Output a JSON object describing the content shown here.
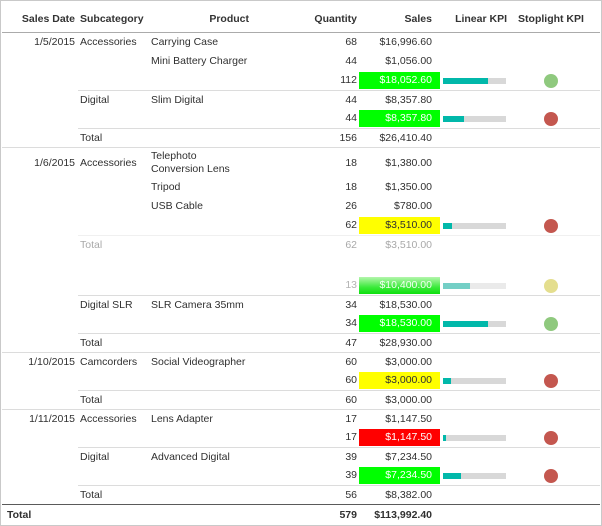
{
  "chart_data": {
    "type": "table",
    "columns": [
      {
        "key": "date",
        "label": "Sales Date"
      },
      {
        "key": "subcategory",
        "label": "Subcategory"
      },
      {
        "key": "product",
        "label": "Product"
      },
      {
        "key": "quantity",
        "label": "Quantity"
      },
      {
        "key": "sales",
        "label": "Sales"
      },
      {
        "key": "kpi",
        "label": "Linear KPI"
      },
      {
        "key": "dot",
        "label": "Stoplight KPI"
      }
    ],
    "rows": [
      {
        "row_type": "detail",
        "separator": "none",
        "date": "1/5/2015",
        "subcategory": "Accessories",
        "product": "Carrying Case",
        "quantity": "68",
        "sales": "$16,996.60",
        "highlight": null,
        "kpi_fraction": null,
        "dot": null,
        "faded": false
      },
      {
        "row_type": "detail",
        "separator": "none",
        "date": "",
        "subcategory": "",
        "product": "Mini Battery Charger",
        "quantity": "44",
        "sales": "$1,056.00",
        "highlight": null,
        "kpi_fraction": null,
        "dot": null,
        "faded": false
      },
      {
        "row_type": "subtotal",
        "separator": "none",
        "date": "",
        "subcategory": "",
        "product": "",
        "quantity": "112",
        "sales": "$18,052.60",
        "highlight": "green",
        "kpi_fraction": 0.72,
        "dot": "green",
        "faded": false
      },
      {
        "row_type": "detail",
        "separator": "sub",
        "date": "",
        "subcategory": "Digital",
        "product": "Slim Digital",
        "quantity": "44",
        "sales": "$8,357.80",
        "highlight": null,
        "kpi_fraction": null,
        "dot": null,
        "faded": false
      },
      {
        "row_type": "subtotal",
        "separator": "none",
        "date": "",
        "subcategory": "",
        "product": "",
        "quantity": "44",
        "sales": "$8,357.80",
        "highlight": "green",
        "kpi_fraction": 0.33,
        "dot": "red",
        "faded": false
      },
      {
        "row_type": "total",
        "separator": "sub",
        "date": "",
        "subcategory": "Total",
        "product": "",
        "quantity": "156",
        "sales": "$26,410.40",
        "highlight": null,
        "kpi_fraction": null,
        "dot": null,
        "faded": false
      },
      {
        "row_type": "detail",
        "separator": "group",
        "date": "1/6/2015",
        "subcategory": "Accessories",
        "product": "Telephoto Conversion Lens",
        "quantity": "18",
        "sales": "$1,380.00",
        "highlight": null,
        "kpi_fraction": null,
        "dot": null,
        "faded": false
      },
      {
        "row_type": "detail",
        "separator": "none",
        "date": "",
        "subcategory": "",
        "product": "Tripod",
        "quantity": "18",
        "sales": "$1,350.00",
        "highlight": null,
        "kpi_fraction": null,
        "dot": null,
        "faded": false
      },
      {
        "row_type": "detail",
        "separator": "none",
        "date": "",
        "subcategory": "",
        "product": "USB Cable",
        "quantity": "26",
        "sales": "$780.00",
        "highlight": null,
        "kpi_fraction": null,
        "dot": null,
        "faded": false
      },
      {
        "row_type": "subtotal",
        "separator": "none",
        "date": "",
        "subcategory": "",
        "product": "",
        "quantity": "62",
        "sales": "$3,510.00",
        "highlight": "yellow",
        "kpi_fraction": 0.14,
        "dot": "red",
        "faded": false
      },
      {
        "row_type": "total",
        "separator": "sub",
        "date": "",
        "subcategory": "Total",
        "product": "",
        "quantity": "62",
        "sales": "$3,510.00",
        "highlight": null,
        "kpi_fraction": null,
        "dot": null,
        "faded": true
      },
      {
        "row_type": "ghost",
        "separator": "none",
        "date": "",
        "subcategory": "",
        "product": "",
        "quantity": "",
        "sales": "",
        "highlight": null,
        "kpi_fraction": null,
        "dot": null,
        "faded": true
      },
      {
        "row_type": "subtotal",
        "separator": "none",
        "date": "",
        "subcategory": "",
        "product": "",
        "quantity": "13",
        "sales": "$10,400.00",
        "highlight": "greenfade",
        "kpi_fraction": 0.43,
        "dot": "yellow",
        "faded": false
      },
      {
        "row_type": "detail",
        "separator": "sub",
        "date": "",
        "subcategory": "Digital SLR",
        "product": "SLR Camera 35mm",
        "quantity": "34",
        "sales": "$18,530.00",
        "highlight": null,
        "kpi_fraction": null,
        "dot": null,
        "faded": false
      },
      {
        "row_type": "subtotal",
        "separator": "none",
        "date": "",
        "subcategory": "",
        "product": "",
        "quantity": "34",
        "sales": "$18,530.00",
        "highlight": "green",
        "kpi_fraction": 0.72,
        "dot": "green",
        "faded": false
      },
      {
        "row_type": "total",
        "separator": "sub",
        "date": "",
        "subcategory": "Total",
        "product": "",
        "quantity": "47",
        "sales": "$28,930.00",
        "highlight": null,
        "kpi_fraction": null,
        "dot": null,
        "faded": false
      },
      {
        "row_type": "detail",
        "separator": "group",
        "date": "1/10/2015",
        "subcategory": "Camcorders",
        "product": "Social Videographer",
        "quantity": "60",
        "sales": "$3,000.00",
        "highlight": null,
        "kpi_fraction": null,
        "dot": null,
        "faded": false
      },
      {
        "row_type": "subtotal",
        "separator": "none",
        "date": "",
        "subcategory": "",
        "product": "",
        "quantity": "60",
        "sales": "$3,000.00",
        "highlight": "yellow",
        "kpi_fraction": 0.12,
        "dot": "red",
        "faded": false
      },
      {
        "row_type": "total",
        "separator": "sub",
        "date": "",
        "subcategory": "Total",
        "product": "",
        "quantity": "60",
        "sales": "$3,000.00",
        "highlight": null,
        "kpi_fraction": null,
        "dot": null,
        "faded": false
      },
      {
        "row_type": "detail",
        "separator": "group",
        "date": "1/11/2015",
        "subcategory": "Accessories",
        "product": "Lens Adapter",
        "quantity": "17",
        "sales": "$1,147.50",
        "highlight": null,
        "kpi_fraction": null,
        "dot": null,
        "faded": false
      },
      {
        "row_type": "subtotal",
        "separator": "none",
        "date": "",
        "subcategory": "",
        "product": "",
        "quantity": "17",
        "sales": "$1,147.50",
        "highlight": "red",
        "kpi_fraction": 0.045,
        "dot": "red",
        "faded": false
      },
      {
        "row_type": "detail",
        "separator": "sub",
        "date": "",
        "subcategory": "Digital",
        "product": "Advanced Digital",
        "quantity": "39",
        "sales": "$7,234.50",
        "highlight": null,
        "kpi_fraction": null,
        "dot": null,
        "faded": false
      },
      {
        "row_type": "subtotal",
        "separator": "none",
        "date": "",
        "subcategory": "",
        "product": "",
        "quantity": "39",
        "sales": "$7,234.50",
        "highlight": "green",
        "kpi_fraction": 0.28,
        "dot": "red",
        "faded": false
      },
      {
        "row_type": "total",
        "separator": "sub",
        "date": "",
        "subcategory": "Total",
        "product": "",
        "quantity": "56",
        "sales": "$8,382.00",
        "highlight": null,
        "kpi_fraction": null,
        "dot": null,
        "faded": false
      },
      {
        "row_type": "grand",
        "separator": "grand",
        "date": "Total",
        "subcategory": "",
        "product": "",
        "quantity": "579",
        "sales": "$113,992.40",
        "highlight": null,
        "kpi_fraction": null,
        "dot": null,
        "faded": false
      }
    ],
    "colors": {
      "kpi_fill": "#01B8AA",
      "kpi_track": "#D8D8D8",
      "highlight_green": "#00FF00",
      "highlight_yellow": "#FFFF00",
      "highlight_red": "#FF0000",
      "dot_green": "#8FC97E",
      "dot_red": "#C4574F",
      "dot_yellow": "#E4DE8E"
    },
    "layout_hints": {
      "grid": "row-separators",
      "legend": "none"
    }
  }
}
